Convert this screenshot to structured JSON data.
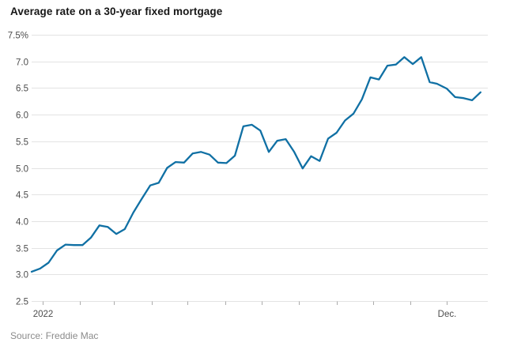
{
  "header": {
    "title": "Average rate on a 30-year fixed mortgage"
  },
  "footer": {
    "source": "Source: Freddie Mac"
  },
  "chart_data": {
    "type": "line",
    "title": "Average rate on a 30-year fixed mortgage",
    "xlabel": "",
    "ylabel": "",
    "ylim": [
      2.5,
      7.5
    ],
    "x_domain": [
      "2021-12-23",
      "2023-01-04"
    ],
    "grid": "horizontal",
    "legend": "none",
    "y_axis": [
      {
        "value": 7.5,
        "label": "7.5%"
      },
      {
        "value": 7.0,
        "label": "7.0"
      },
      {
        "value": 6.5,
        "label": "6.5"
      },
      {
        "value": 6.0,
        "label": "6.0"
      },
      {
        "value": 5.5,
        "label": "5.5"
      },
      {
        "value": 5.0,
        "label": "5.0"
      },
      {
        "value": 4.5,
        "label": "4.5"
      },
      {
        "value": 4.0,
        "label": "4.0"
      },
      {
        "value": 3.5,
        "label": "3.5"
      },
      {
        "value": 3.0,
        "label": "3.0"
      },
      {
        "value": 2.5,
        "label": "2.5"
      }
    ],
    "x_axis": [
      {
        "date": "2022-01-01",
        "label": "2022"
      },
      {
        "date": "2022-02-01",
        "label": ""
      },
      {
        "date": "2022-03-01",
        "label": ""
      },
      {
        "date": "2022-04-01",
        "label": ""
      },
      {
        "date": "2022-05-01",
        "label": ""
      },
      {
        "date": "2022-06-01",
        "label": ""
      },
      {
        "date": "2022-07-01",
        "label": ""
      },
      {
        "date": "2022-08-01",
        "label": ""
      },
      {
        "date": "2022-09-01",
        "label": ""
      },
      {
        "date": "2022-10-01",
        "label": ""
      },
      {
        "date": "2022-11-01",
        "label": ""
      },
      {
        "date": "2022-12-01",
        "label": "Dec."
      }
    ],
    "series": [
      {
        "name": "30-year fixed mortgage rate",
        "color": "#1070a4",
        "x": [
          "2021-12-23",
          "2021-12-30",
          "2022-01-06",
          "2022-01-13",
          "2022-01-20",
          "2022-01-27",
          "2022-02-03",
          "2022-02-10",
          "2022-02-17",
          "2022-02-24",
          "2022-03-03",
          "2022-03-10",
          "2022-03-17",
          "2022-03-24",
          "2022-03-31",
          "2022-04-07",
          "2022-04-14",
          "2022-04-21",
          "2022-04-28",
          "2022-05-05",
          "2022-05-12",
          "2022-05-19",
          "2022-05-26",
          "2022-06-02",
          "2022-06-09",
          "2022-06-16",
          "2022-06-23",
          "2022-06-30",
          "2022-07-07",
          "2022-07-14",
          "2022-07-21",
          "2022-07-28",
          "2022-08-04",
          "2022-08-11",
          "2022-08-18",
          "2022-08-25",
          "2022-09-01",
          "2022-09-08",
          "2022-09-15",
          "2022-09-22",
          "2022-09-29",
          "2022-10-06",
          "2022-10-13",
          "2022-10-20",
          "2022-10-27",
          "2022-11-03",
          "2022-11-10",
          "2022-11-17",
          "2022-11-23",
          "2022-12-01",
          "2022-12-08",
          "2022-12-15",
          "2022-12-22",
          "2022-12-29"
        ],
        "values": [
          3.05,
          3.11,
          3.22,
          3.45,
          3.56,
          3.55,
          3.55,
          3.69,
          3.92,
          3.89,
          3.76,
          3.85,
          4.16,
          4.42,
          4.67,
          4.72,
          5.0,
          5.11,
          5.1,
          5.27,
          5.3,
          5.25,
          5.1,
          5.09,
          5.23,
          5.78,
          5.81,
          5.7,
          5.3,
          5.51,
          5.54,
          5.3,
          4.99,
          5.22,
          5.13,
          5.55,
          5.66,
          5.89,
          6.02,
          6.29,
          6.7,
          6.66,
          6.92,
          6.94,
          7.08,
          6.95,
          7.08,
          6.61,
          6.58,
          6.49,
          6.33,
          6.31,
          6.27,
          6.42
        ]
      }
    ],
    "colors": {
      "line": "#1070a4",
      "grid": "#e3e3e3",
      "tick": "#ababab",
      "axis_text": "#4d4d4d",
      "title_text": "#161616",
      "source_text": "#8b8b8b",
      "background": "#ffffff"
    }
  }
}
